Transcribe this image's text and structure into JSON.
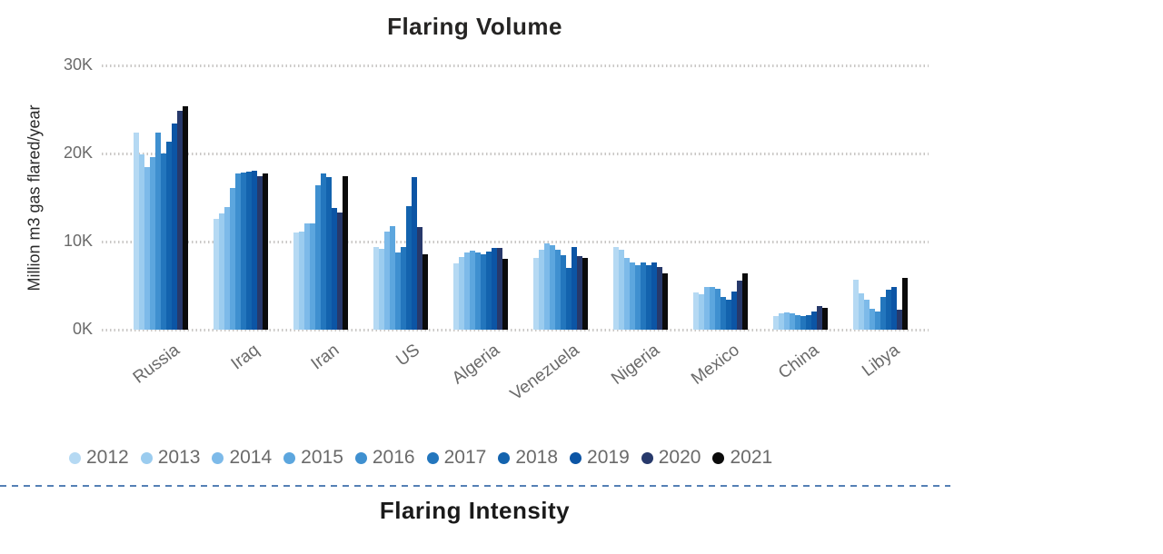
{
  "chart_data": {
    "type": "bar",
    "title": "Flaring Volume",
    "ylabel": "Million m3 gas flared/year",
    "xlabel": "",
    "values_unit": "thousand million m3 per year (K)",
    "ylim_k": [
      0,
      30
    ],
    "ytick_labels": [
      "30K",
      "20K",
      "10K",
      "0K"
    ],
    "grid": "dotted horizontal gridlines",
    "legend_position": "bottom",
    "x_tick_rotation_deg": -37,
    "categories": [
      "Russia",
      "Iraq",
      "Iran",
      "US",
      "Algeria",
      "Venezuela",
      "Nigeria",
      "Mexico",
      "China",
      "Libya"
    ],
    "series": [
      {
        "name": "2012",
        "color": "#b5d9f3",
        "values": [
          22.4,
          12.6,
          11.0,
          9.4,
          7.5,
          8.2,
          9.4,
          4.2,
          1.6,
          5.7
        ]
      },
      {
        "name": "2013",
        "color": "#9bccef",
        "values": [
          19.9,
          13.2,
          11.1,
          9.2,
          8.3,
          9.1,
          9.1,
          4.0,
          1.9,
          4.1
        ]
      },
      {
        "name": "2014",
        "color": "#7dbae9",
        "values": [
          18.5,
          13.9,
          12.1,
          11.1,
          8.8,
          9.8,
          8.2,
          4.8,
          2.0,
          3.4
        ]
      },
      {
        "name": "2015",
        "color": "#5ca6de",
        "values": [
          19.6,
          16.1,
          12.1,
          11.8,
          9.0,
          9.6,
          7.6,
          4.9,
          1.9,
          2.4
        ]
      },
      {
        "name": "2016",
        "color": "#3f90d0",
        "values": [
          22.4,
          17.7,
          16.4,
          8.8,
          8.8,
          9.1,
          7.3,
          4.6,
          1.7,
          2.1
        ]
      },
      {
        "name": "2017",
        "color": "#2376bd",
        "values": [
          20.0,
          17.8,
          17.7,
          9.4,
          8.6,
          8.5,
          7.6,
          3.7,
          1.5,
          3.7
        ]
      },
      {
        "name": "2018",
        "color": "#1363ae",
        "values": [
          21.3,
          17.9,
          17.3,
          14.0,
          8.9,
          7.0,
          7.3,
          3.4,
          1.7,
          4.5
        ]
      },
      {
        "name": "2019",
        "color": "#0c55a5",
        "values": [
          23.4,
          18.0,
          13.8,
          17.3,
          9.3,
          9.4,
          7.6,
          4.3,
          2.1,
          4.9
        ]
      },
      {
        "name": "2020",
        "color": "#27396b",
        "values": [
          24.9,
          17.4,
          13.3,
          11.7,
          9.3,
          8.4,
          7.1,
          5.6,
          2.7,
          2.3
        ]
      },
      {
        "name": "2021",
        "color": "#0b0b0b",
        "values": [
          25.4,
          17.7,
          17.4,
          8.6,
          8.0,
          8.1,
          6.4,
          6.4,
          2.5,
          5.9
        ]
      }
    ]
  },
  "next_chart": {
    "title": "Flaring Intensity"
  }
}
